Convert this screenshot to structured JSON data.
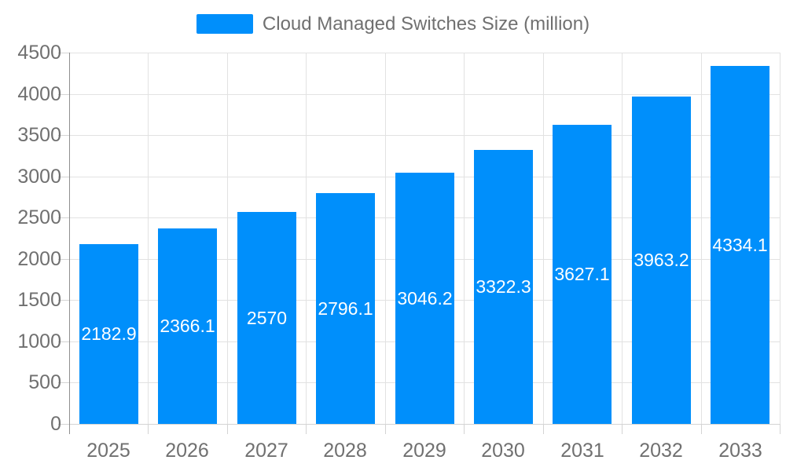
{
  "chart_data": {
    "type": "bar",
    "title": "Cloud Managed Switches Size (million)",
    "categories": [
      "2025",
      "2026",
      "2027",
      "2028",
      "2029",
      "2030",
      "2031",
      "2032",
      "2033"
    ],
    "series": [
      {
        "name": "Cloud Managed Switches Size (million)",
        "values": [
          2182.9,
          2366.1,
          2570,
          2796.1,
          3046.2,
          3322.3,
          3627.1,
          3963.2,
          4334.1
        ],
        "data_labels": [
          "2182.9",
          "2366.1",
          "2570",
          "2796.1",
          "3046.2",
          "3322.3",
          "3627.1",
          "3963.2",
          "4334.1"
        ]
      }
    ],
    "xlabel": "",
    "ylabel": "",
    "ylim": [
      0,
      4500
    ],
    "yticks": [
      0,
      500,
      1000,
      1500,
      2000,
      2500,
      3000,
      3500,
      4000,
      4500
    ],
    "grid": true,
    "legend_position": "top",
    "colors": {
      "bar": "#008FFB",
      "data_label_text": "#ffffff",
      "axis_label_text": "#707070",
      "legend_text": "#707070",
      "gridline": "#e2e2e2",
      "y_axis_line": "#8f8f8f",
      "x_axis_line": "#d4d4d4",
      "tick": "#d4d4d4",
      "background": "#ffffff"
    }
  }
}
